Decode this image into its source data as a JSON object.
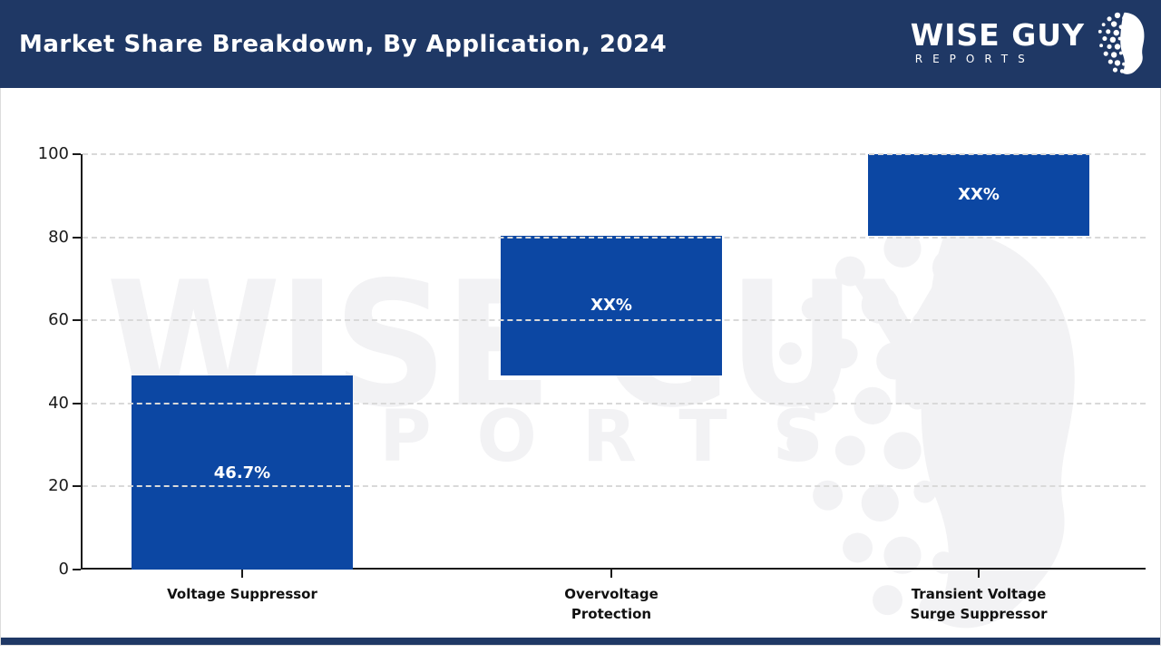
{
  "header": {
    "title": "Market Share Breakdown, By Application, 2024",
    "logo": {
      "line1": "WISE GUY",
      "line2": "REPORTS"
    }
  },
  "watermark": {
    "line1": "WISE GUY",
    "line2": "REPORTS"
  },
  "chart_data": {
    "type": "bar",
    "subtype": "waterfall",
    "title": "Market Share Breakdown, By Application, 2024",
    "categories": [
      "Voltage Suppressor",
      "Overvoltage Protection",
      "Transient Voltage Surge Suppressor"
    ],
    "category_lines": [
      [
        "Voltage Suppressor"
      ],
      [
        "Overvoltage",
        "Protection"
      ],
      [
        "Transient Voltage",
        "Surge Suppressor"
      ]
    ],
    "segments": [
      {
        "category": "Voltage Suppressor",
        "start": 0,
        "end": 46.7,
        "label": "46.7%"
      },
      {
        "category": "Overvoltage Protection",
        "start": 46.7,
        "end": 80.4,
        "label": "XX%"
      },
      {
        "category": "Transient Voltage Surge Suppressor",
        "start": 80.4,
        "end": 100,
        "label": "XX%"
      }
    ],
    "xlabel": "",
    "ylabel": "",
    "ylim": [
      0,
      100
    ],
    "yticks": [
      0,
      20,
      40,
      60,
      80,
      100
    ],
    "grid": "horizontal dashed",
    "legend": "none",
    "bar_color": "#0c47a3",
    "bar_label_color": "#ffffff"
  },
  "colors": {
    "header_bg": "#1f3865",
    "footer_bg": "#1f3865",
    "bar": "#0c47a3",
    "gridline": "#d9d9d9",
    "axis": "#1a1a1a",
    "watermark": "#f2f2f4"
  }
}
